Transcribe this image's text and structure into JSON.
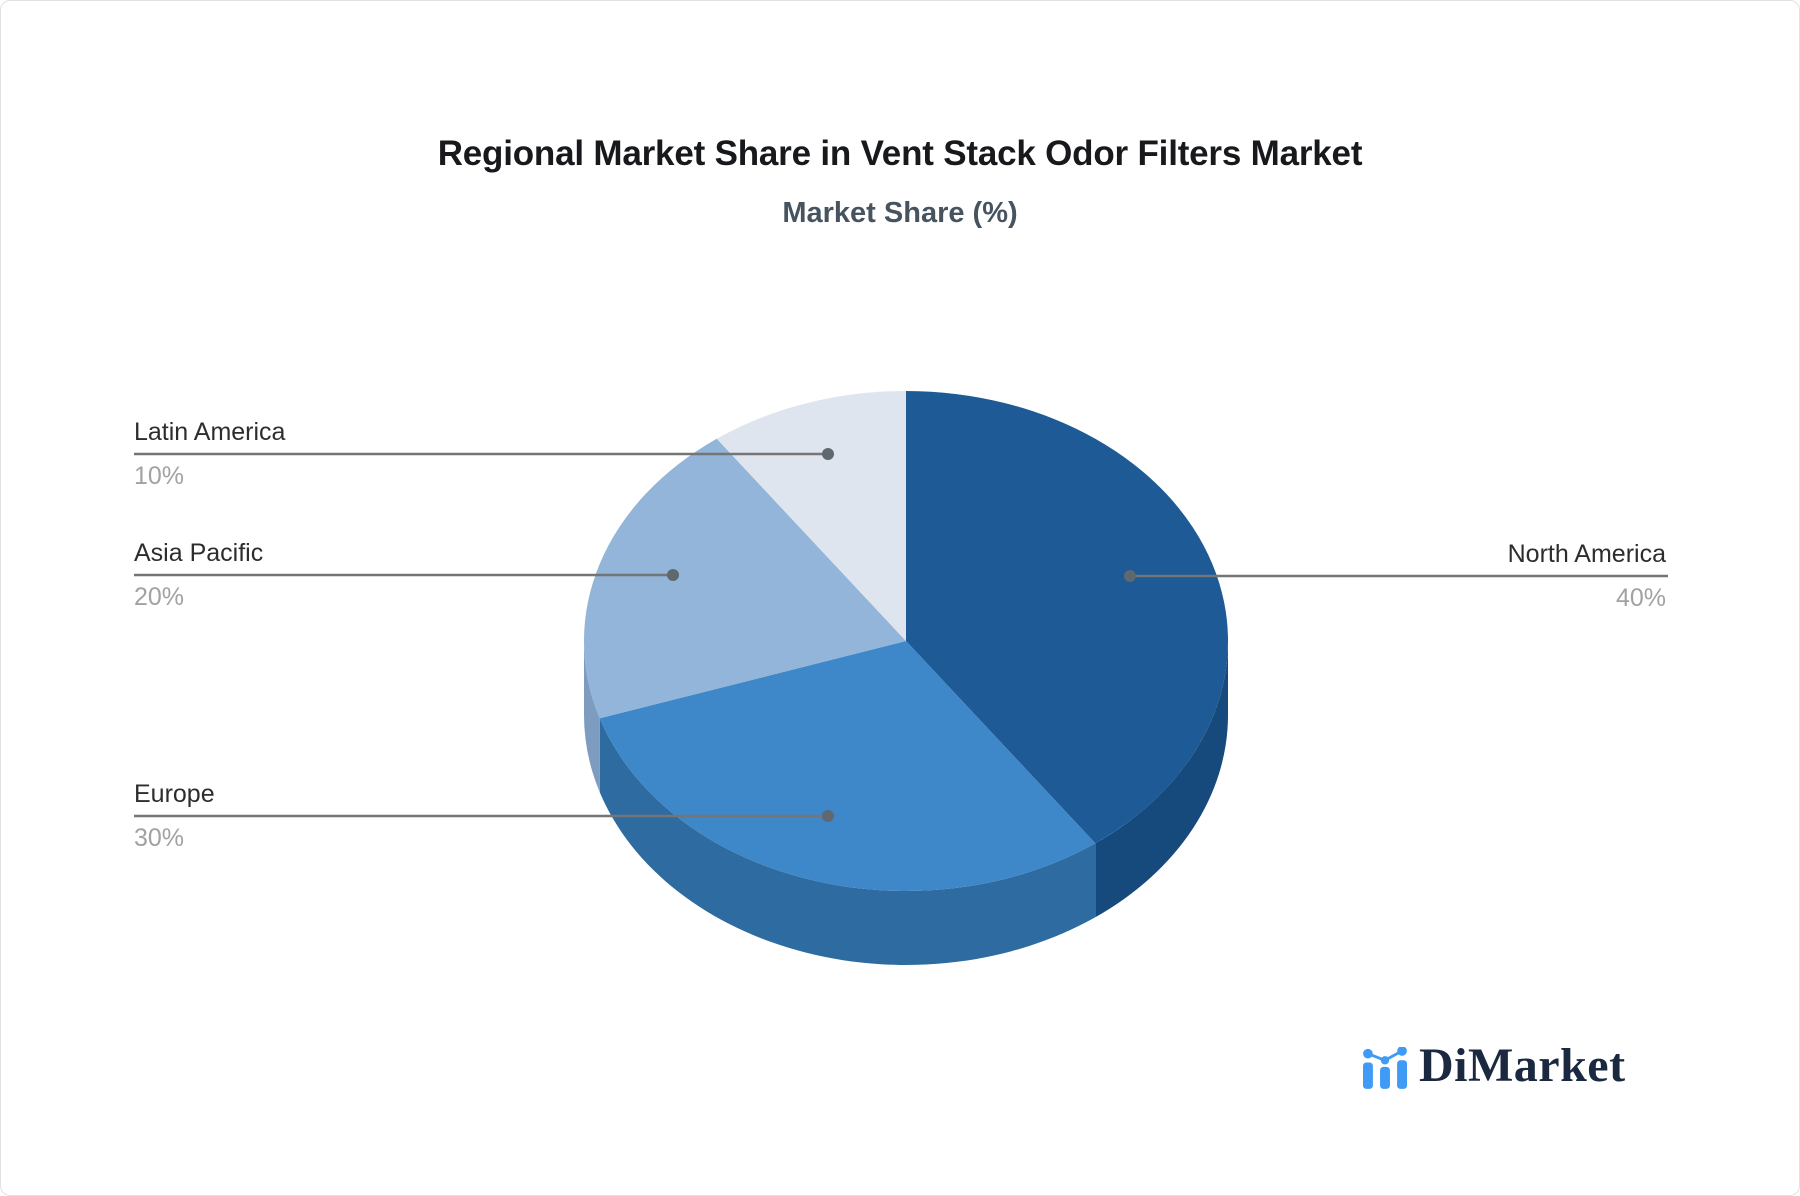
{
  "title": "Regional Market Share in Vent Stack Odor Filters Market",
  "subtitle": "Market Share (%)",
  "brand": {
    "name": "DiMarket",
    "icon": "bar-line-chart-icon",
    "icon_color": "#3f9bf5",
    "text_color": "#1a2840"
  },
  "chart_data": {
    "type": "pie",
    "title": "Regional Market Share in Vent Stack Odor Filters Market",
    "subtitle": "Market Share (%)",
    "unit": "%",
    "effect": "3d",
    "start_angle_deg": 0,
    "direction": "clockwise",
    "legend_position": "callout-labels",
    "slices": [
      {
        "label": "North America",
        "value": 40,
        "display": "40%",
        "color": "#1d5a96",
        "side_color": "#16497c",
        "label_side": "right"
      },
      {
        "label": "Europe",
        "value": 30,
        "display": "30%",
        "color": "#3e87c9",
        "side_color": "#2e6ba1",
        "label_side": "left"
      },
      {
        "label": "Asia Pacific",
        "value": 20,
        "display": "20%",
        "color": "#92b5d9",
        "side_color": "#7e9cc0",
        "label_side": "left"
      },
      {
        "label": "Latin America",
        "value": 10,
        "display": "10%",
        "color": "#dfe5ee",
        "side_color": "#c5d0de",
        "label_side": "left"
      }
    ],
    "connector_color": "#757575",
    "connector_dot_color": "#5f686f",
    "label_color": "#2d2d2d",
    "value_color": "#a2a2a2"
  }
}
